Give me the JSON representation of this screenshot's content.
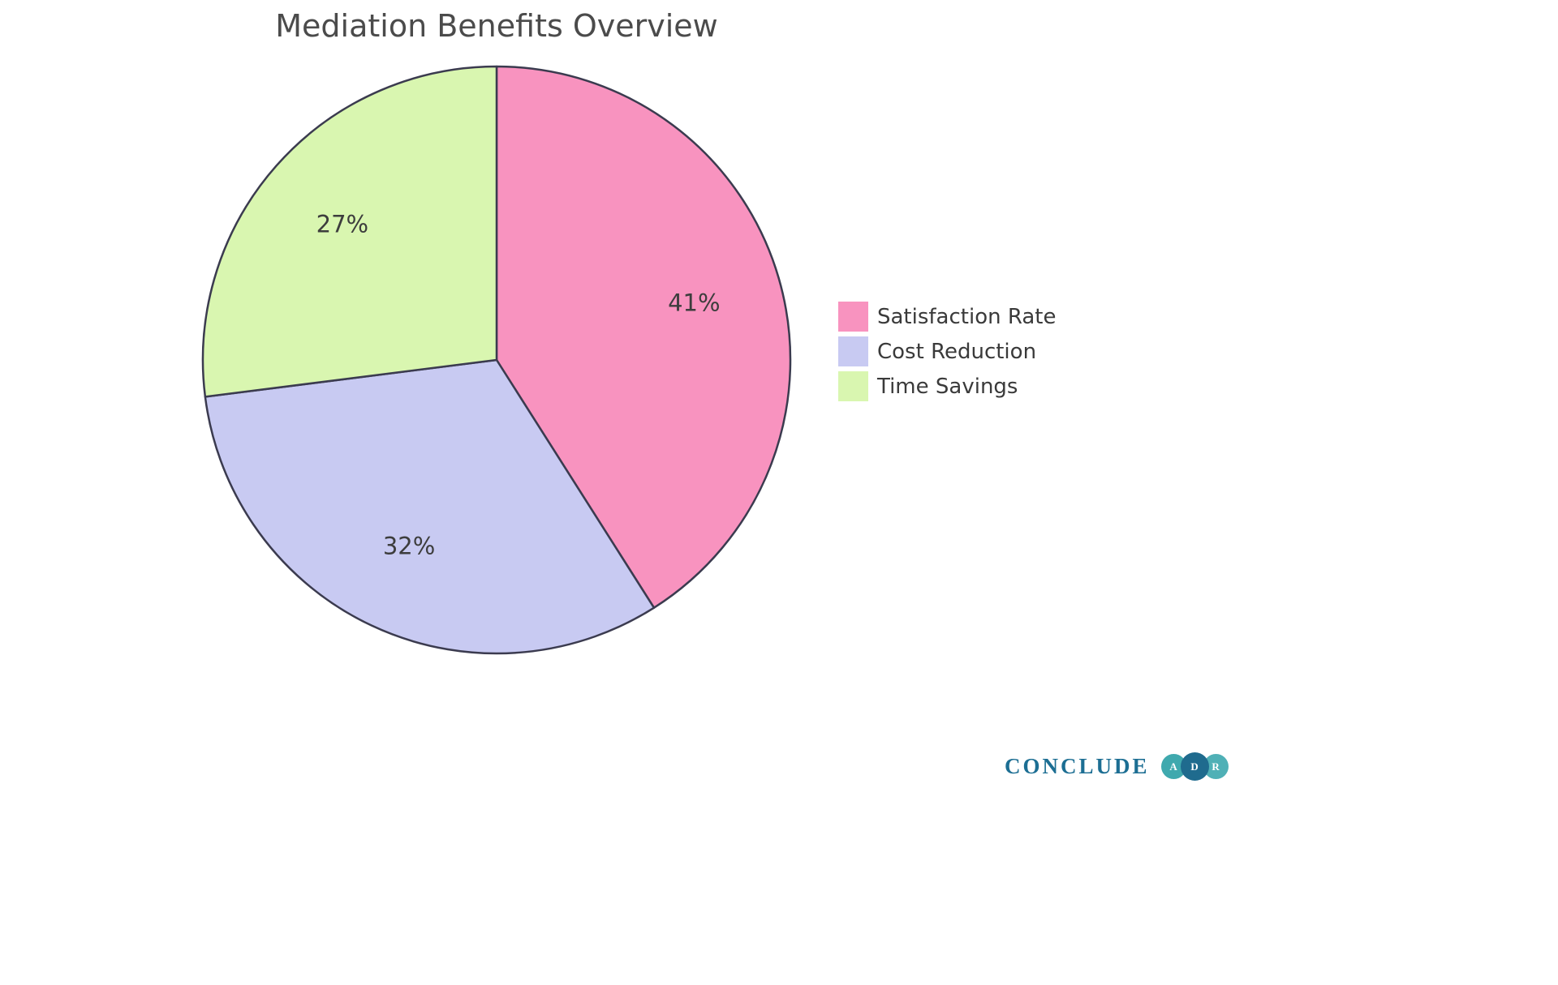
{
  "title": "Mediation Benefits Overview",
  "chart_data": {
    "type": "pie",
    "title": "Mediation Benefits Overview",
    "labels": [
      "Satisfaction Rate",
      "Cost Reduction",
      "Time Savings"
    ],
    "values": [
      41,
      32,
      27
    ],
    "value_labels": [
      "41%",
      "32%",
      "27%"
    ],
    "colors": [
      "#F893BF",
      "#C8CAF2",
      "#D9F6B0"
    ],
    "stroke_color": "#3b3b4f",
    "start_angle_deg": 0,
    "direction": "clockwise",
    "legend_position": "right",
    "label_color": "#3d3d3d"
  },
  "legend": {
    "items": [
      {
        "label": "Satisfaction Rate",
        "color": "#F893BF"
      },
      {
        "label": "Cost Reduction",
        "color": "#C8CAF2"
      },
      {
        "label": "Time Savings",
        "color": "#D9F6B0"
      }
    ]
  },
  "brand": {
    "wordmark": "CONCLUDE",
    "wordmark_color": "#1c6e93",
    "badges": [
      {
        "letter": "A",
        "color": "#3fa9ae"
      },
      {
        "letter": "D",
        "color": "#1f6b8e"
      },
      {
        "letter": "R",
        "color": "#4fb0b6"
      }
    ]
  }
}
